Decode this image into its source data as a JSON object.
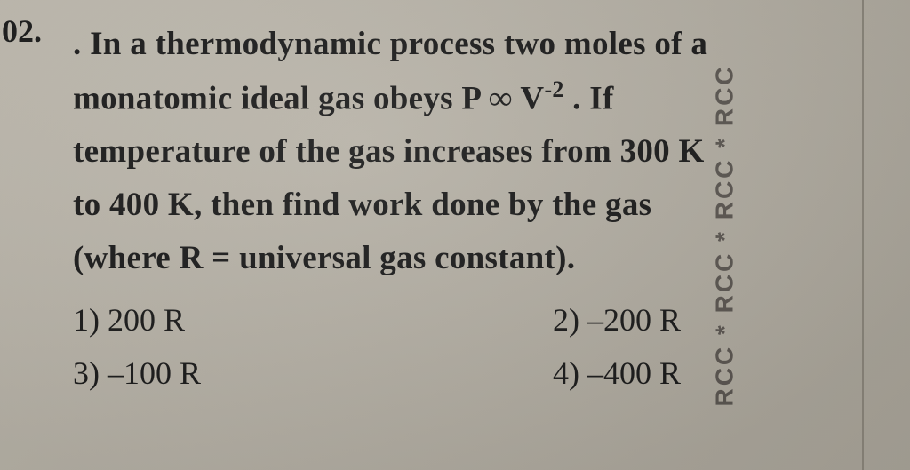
{
  "question": {
    "number": "02.",
    "stem_line1": ". In a thermodynamic process two moles of a",
    "stem_line2_a": "monatomic ideal gas obeys P",
    "stem_line2_prop": "∞",
    "stem_line2_b": "V",
    "stem_exp": "-2",
    "stem_line2_c": " . If",
    "stem_line3": "temperature of the gas increases from 300 K",
    "stem_line4": "to 400 K, then find work done by the gas",
    "stem_line5": "(where R = universal gas constant).",
    "options": {
      "o1": "1) 200 R",
      "o2": "2) –200 R",
      "o3": "3) –100 R",
      "o4": "4) –400 R"
    }
  },
  "side_text": "RCC * RCC * RCC * RCC",
  "styling": {
    "paper_bg": "#b8b3a8",
    "text_color": "#1a1a1a",
    "side_text_color": "#5a5550",
    "stem_fontsize": 37,
    "option_fontsize": 36,
    "qnum_fontsize": 36
  }
}
